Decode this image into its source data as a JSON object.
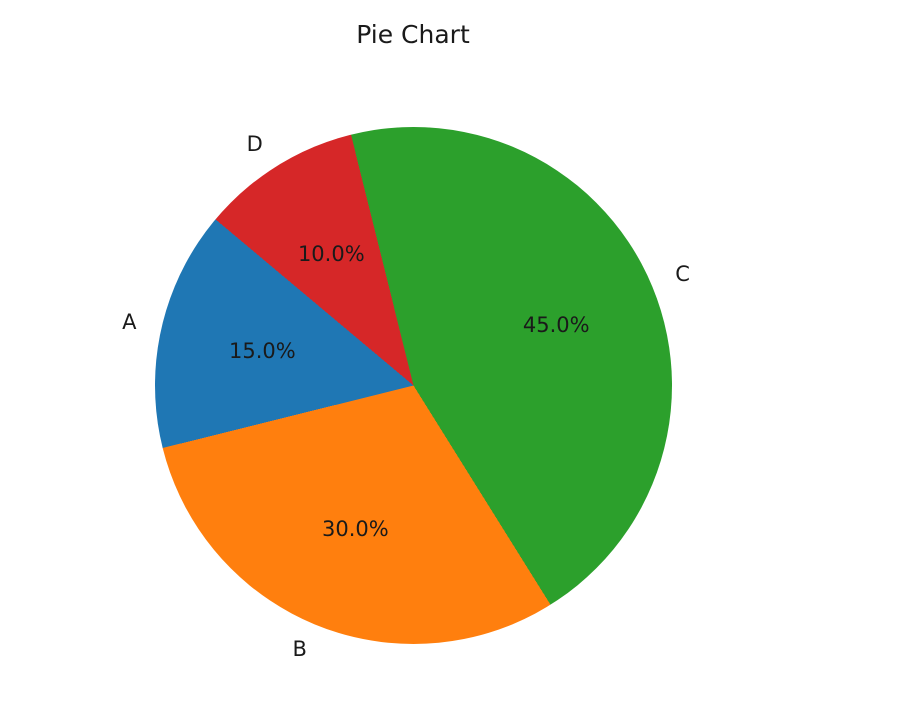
{
  "figure": {
    "title": "Pie Chart",
    "background_color": "#ffffff",
    "text_color": "#1a1a1a"
  },
  "chart_data": {
    "type": "pie",
    "title": "Pie Chart",
    "startangle_deg": 140,
    "direction": "counterclockwise",
    "label_distance": 1.1,
    "pct_distance": 0.6,
    "legend": "none",
    "slices": [
      {
        "label": "A",
        "value": 15.0,
        "pct_label": "15.0%",
        "color": "#1f77b4"
      },
      {
        "label": "B",
        "value": 30.0,
        "pct_label": "30.0%",
        "color": "#ff7f0e"
      },
      {
        "label": "C",
        "value": 45.0,
        "pct_label": "45.0%",
        "color": "#2ca02c"
      },
      {
        "label": "D",
        "value": 10.0,
        "pct_label": "10.0%",
        "color": "#d62728"
      }
    ]
  }
}
